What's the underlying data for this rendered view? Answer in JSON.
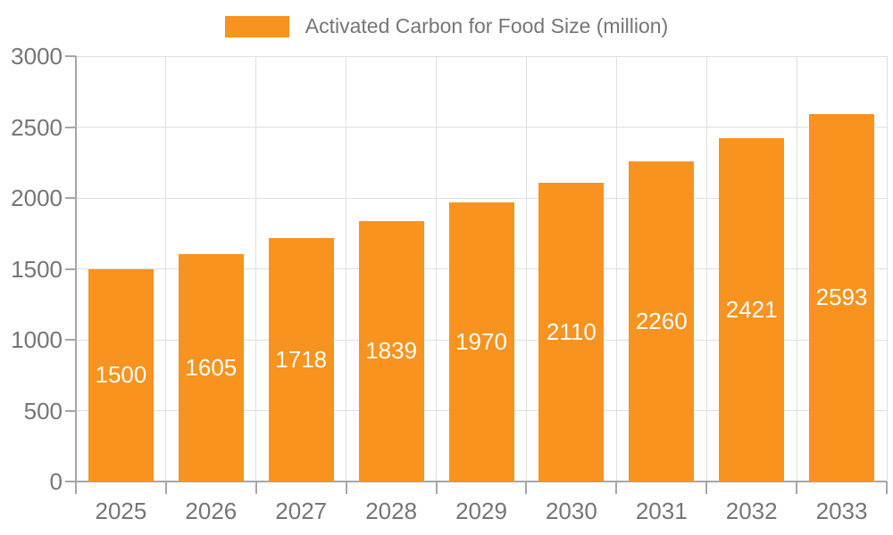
{
  "chart_data": {
    "type": "bar",
    "title": "Activated Carbon for Food Size (million)",
    "legend_entries": [
      "Activated Carbon for Food Size (million)"
    ],
    "legend_position": "top-center",
    "categories": [
      "2025",
      "2026",
      "2027",
      "2028",
      "2029",
      "2030",
      "2031",
      "2032",
      "2033"
    ],
    "series": [
      {
        "name": "Activated Carbon for Food Size (million)",
        "values": [
          1500,
          1605,
          1718,
          1839,
          1970,
          2110,
          2260,
          2421,
          2593
        ]
      }
    ],
    "xlabel": "",
    "ylabel": "",
    "ylim": [
      0,
      3000
    ],
    "yticks": [
      0,
      500,
      1000,
      1500,
      2000,
      2500,
      3000
    ],
    "grid": true,
    "data_labels": "inside-center",
    "colors": {
      "bar": "#F7931E",
      "bar_label": "#FFFFFF",
      "axis_text": "#757575",
      "axis_line": "#A6A6A6",
      "gridline": "#E0E0E0",
      "background": "#FFFFFF"
    }
  }
}
